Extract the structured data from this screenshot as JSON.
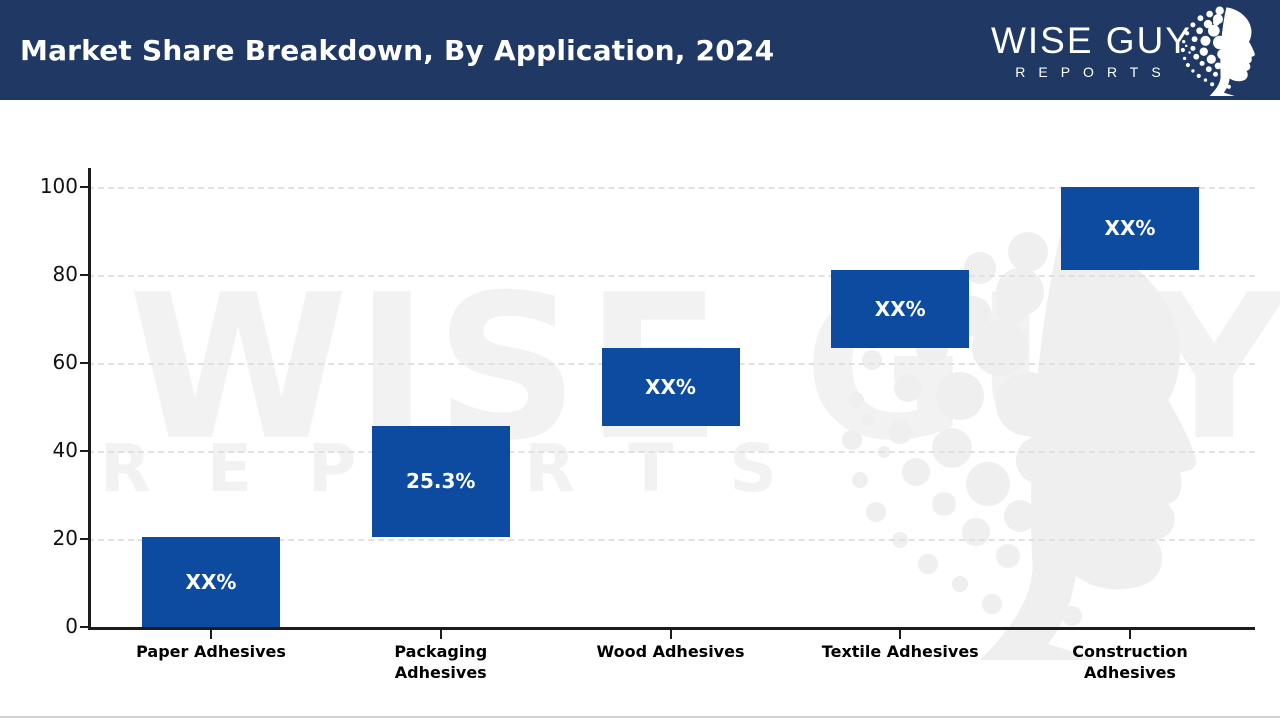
{
  "header": {
    "title": "Market Share Breakdown, By Application, 2024",
    "bg_color": "#1F3864",
    "logo": {
      "line1": "WISE GUY",
      "line2": "REPORTS"
    }
  },
  "watermark": {
    "line1": "WISE GUY",
    "line2": "REPORTS"
  },
  "chart_data": {
    "type": "bar",
    "subtype": "waterfall",
    "title": "Market Share Breakdown, By Application, 2024",
    "categories": [
      "Paper Adhesives",
      "Packaging\nAdhesives",
      "Wood Adhesives",
      "Textile Adhesives",
      "Construction\nAdhesives"
    ],
    "series": [
      {
        "name": "Market Share",
        "segments": [
          {
            "category": "Paper Adhesives",
            "start": 0,
            "end": 20.4,
            "label": "XX%"
          },
          {
            "category": "Packaging Adhesives",
            "start": 20.4,
            "end": 45.7,
            "label": "25.3%"
          },
          {
            "category": "Wood Adhesives",
            "start": 45.7,
            "end": 63.4,
            "label": "XX%"
          },
          {
            "category": "Textile Adhesives",
            "start": 63.4,
            "end": 81.1,
            "label": "XX%"
          },
          {
            "category": "Construction Adhesives",
            "start": 81.1,
            "end": 100,
            "label": "XX%"
          }
        ]
      }
    ],
    "xlabel": "",
    "ylabel": "",
    "ylim": [
      0,
      100
    ],
    "yticks": [
      0,
      20,
      40,
      60,
      80,
      100
    ],
    "grid": "horizontal-dashed",
    "legend": "none",
    "bar_color": "#0C4BA0",
    "bar_label_color": "#ffffff",
    "axis_color": "#1c1c1c",
    "grid_color": "#e1e1e1"
  }
}
